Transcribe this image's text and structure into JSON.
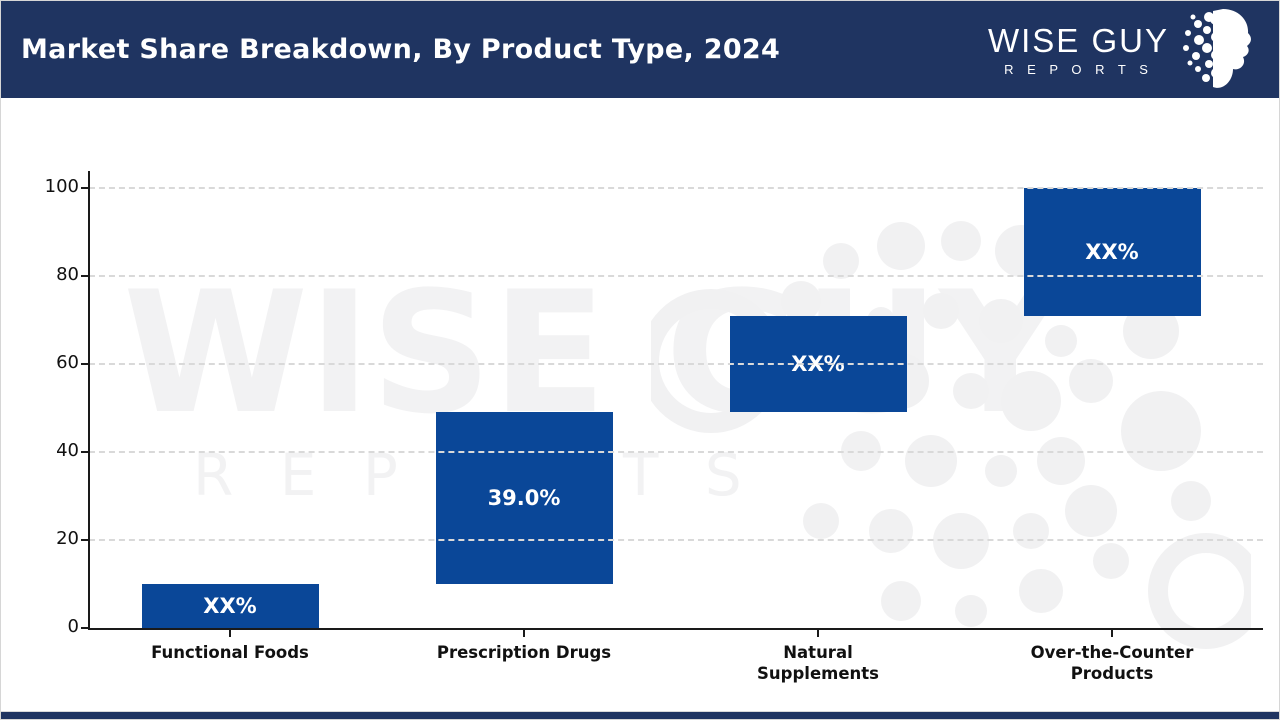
{
  "header": {
    "title": "Market Share Breakdown, By Product Type, 2024",
    "logo": {
      "line1": "WISE GUY",
      "line2": "R E P O R T S"
    }
  },
  "watermark": {
    "line1": "WISE GUY",
    "line2": "R E P O R T S"
  },
  "chart_data": {
    "type": "bar",
    "subtype": "waterfall",
    "title": "Market Share Breakdown, By Product Type, 2024",
    "categories": [
      "Functional Foods",
      "Prescription Drugs",
      "Natural Supplements",
      "Over-the-Counter Products"
    ],
    "category_display": [
      "Functional Foods",
      "Prescription Drugs",
      "Natural\nSupplements",
      "Over-the-Counter\nProducts"
    ],
    "segments": [
      {
        "category": "Functional Foods",
        "start": 0,
        "end": 10,
        "value": 10,
        "value_label": "XX%"
      },
      {
        "category": "Prescription Drugs",
        "start": 10,
        "end": 49,
        "value": 39,
        "value_label": "39.0%"
      },
      {
        "category": "Natural Supplements",
        "start": 49,
        "end": 71,
        "value": 22,
        "value_label": "XX%"
      },
      {
        "category": "Over-the-Counter Products",
        "start": 71,
        "end": 100,
        "value": 29,
        "value_label": "XX%"
      }
    ],
    "yticks": [
      0,
      20,
      40,
      60,
      80,
      100
    ],
    "ylim": [
      0,
      104
    ],
    "xlabel": "",
    "ylabel": "",
    "grid": "horizontal-dashed",
    "legend": "none",
    "colors": {
      "bar": "#0a4798",
      "value_label": "#ffffff",
      "gridline": "#d9d9d9",
      "axis": "#1a1a1a",
      "header_bg": "#1f3461",
      "footer_bg": "#1f3461",
      "watermark": "#f2f2f3"
    }
  }
}
